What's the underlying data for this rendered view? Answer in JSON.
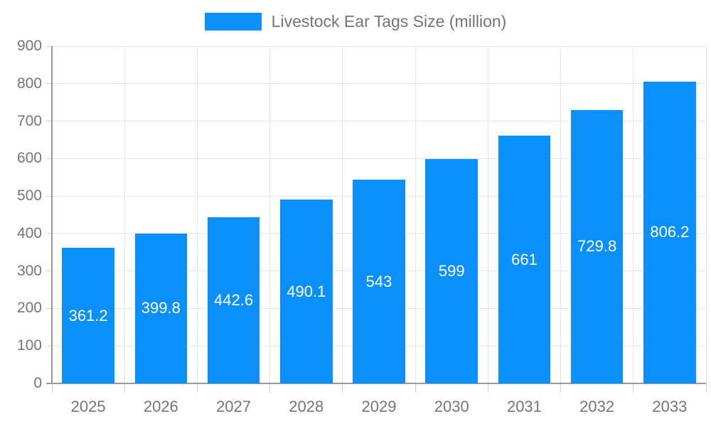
{
  "chart_data": {
    "type": "bar",
    "title": "Livestock Ear Tags Size (million)",
    "series_name": "Livestock Ear Tags Size (million)",
    "categories": [
      "2025",
      "2026",
      "2027",
      "2028",
      "2029",
      "2030",
      "2031",
      "2032",
      "2033"
    ],
    "values": [
      361.2,
      399.8,
      442.6,
      490.1,
      543,
      599,
      661,
      729.8,
      806.2
    ],
    "value_labels": [
      "361.2",
      "399.8",
      "442.6",
      "490.1",
      "543",
      "599",
      "661",
      "729.8",
      "806.2"
    ],
    "xlabel": "",
    "ylabel": "",
    "ylim": [
      0,
      900
    ],
    "ytick_step": 100,
    "ytick_labels": [
      "0",
      "100",
      "200",
      "300",
      "400",
      "500",
      "600",
      "700",
      "800",
      "900"
    ],
    "grid": true,
    "legend_position": "top",
    "colors": {
      "bar": "#0b90fa",
      "grid": "#e6e6e6",
      "axis": "#9a9a9a",
      "tick": "#cfcfcf",
      "tick_label": "#757575",
      "value_label": "#ffffff",
      "legend_text": "#757575"
    }
  }
}
